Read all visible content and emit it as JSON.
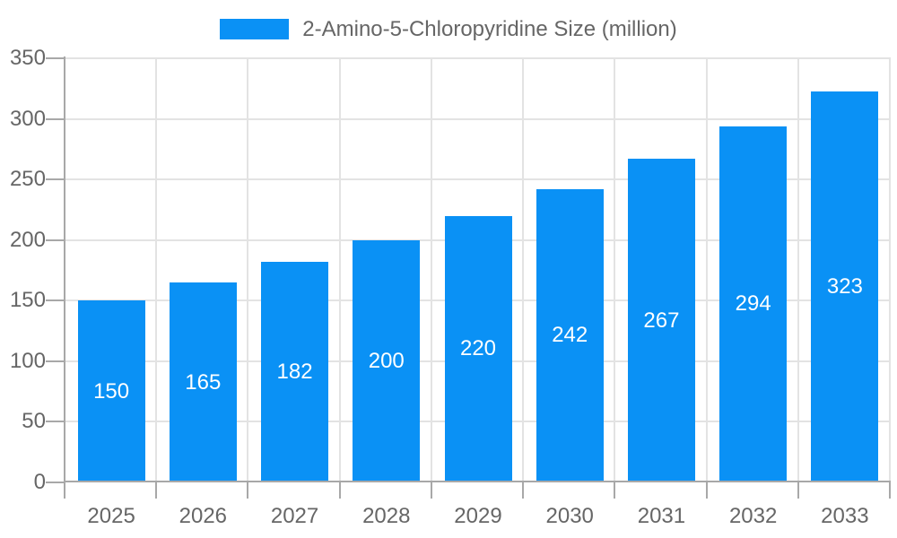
{
  "chart_data": {
    "type": "bar",
    "title": "2-Amino-5-Chloropyridine Size (million)",
    "categories": [
      "2025",
      "2026",
      "2027",
      "2028",
      "2029",
      "2030",
      "2031",
      "2032",
      "2033"
    ],
    "values": [
      150,
      165,
      182,
      200,
      220,
      242,
      267,
      294,
      323
    ],
    "xlabel": "",
    "ylabel": "",
    "ylim": [
      0,
      350
    ],
    "ytick_step": 50,
    "yticks": [
      "0",
      "50",
      "100",
      "150",
      "200",
      "250",
      "300",
      "350"
    ],
    "grid": true,
    "legend_position": "top",
    "value_labels": "inside-center",
    "colors": {
      "bar": "#0a91f5",
      "grid": "#e3e3e3",
      "axis": "#a8a8a8",
      "text": "#666666",
      "value_label": "#ffffff"
    }
  }
}
